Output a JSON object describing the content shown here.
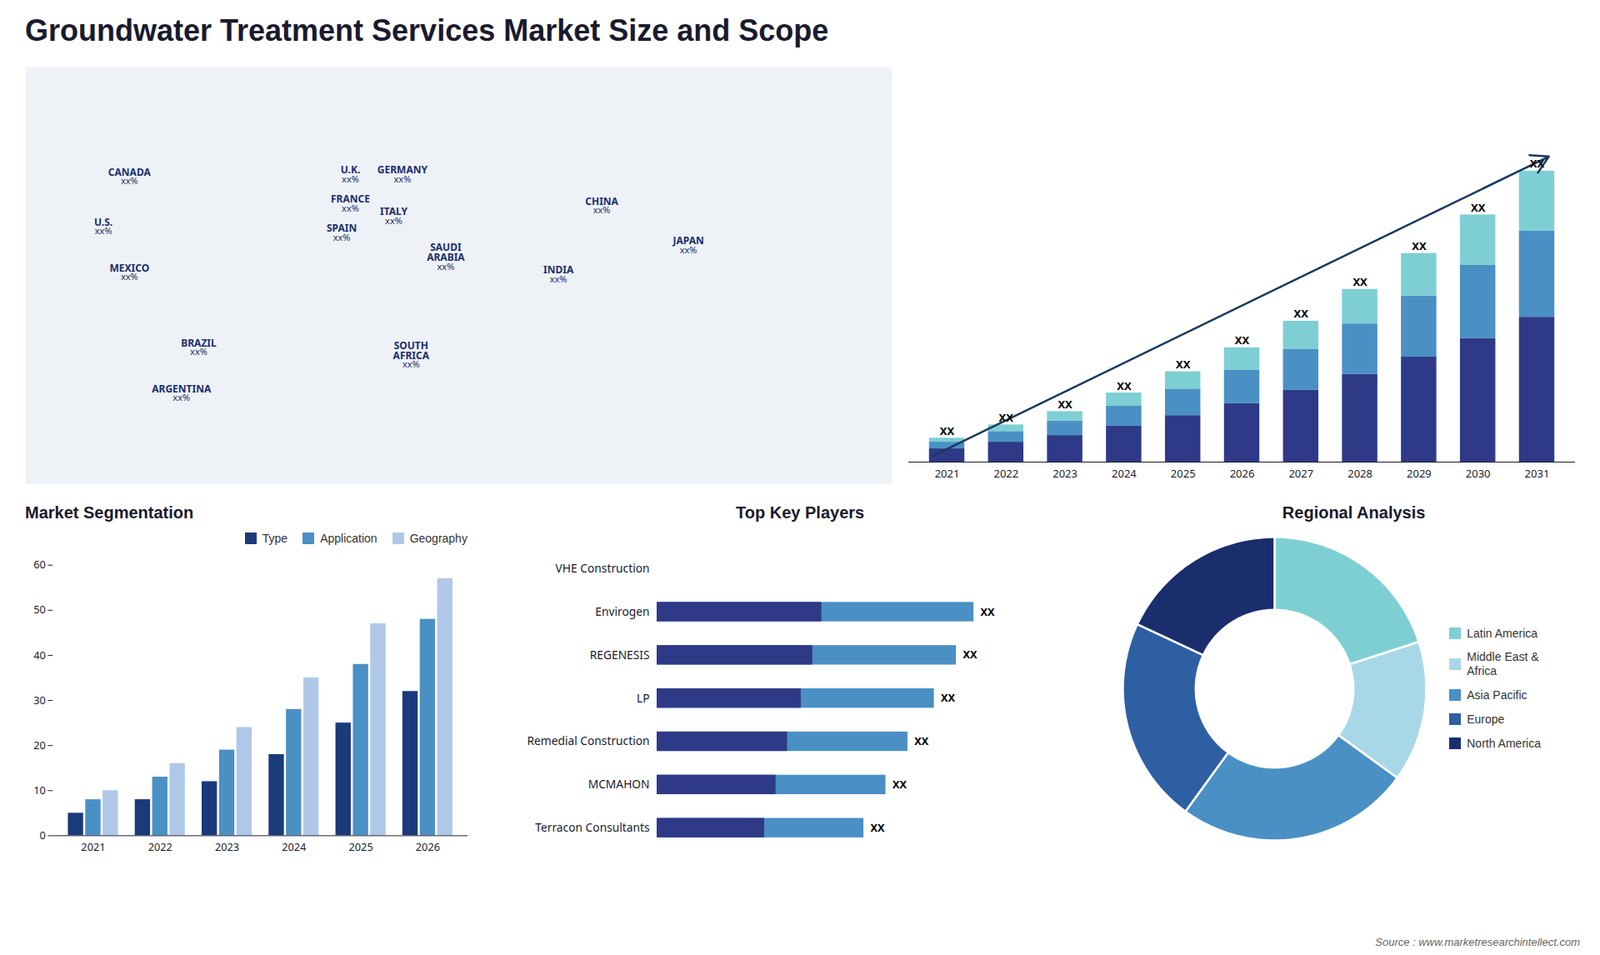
{
  "title": "Groundwater Treatment Services Market Size and Scope",
  "source": "Source : www.marketresearchintellect.com",
  "chart_data": [
    {
      "type": "map",
      "labels": [
        "CANADA",
        "U.S.",
        "MEXICO",
        "BRAZIL",
        "ARGENTINA",
        "U.K.",
        "FRANCE",
        "SPAIN",
        "GERMANY",
        "ITALY",
        "SAUDI\nARABIA",
        "SOUTH\nAFRICA",
        "CHINA",
        "JAPAN",
        "INDIA"
      ],
      "value_labels": [
        "xx%",
        "xx%",
        "xx%",
        "xx%",
        "xx%",
        "xx%",
        "xx%",
        "xx%",
        "xx%",
        "xx%",
        "xx%",
        "xx%",
        "xx%",
        "xx%",
        "xx%"
      ],
      "x": [
        0.12,
        0.09,
        0.12,
        0.2,
        0.18,
        0.375,
        0.375,
        0.365,
        0.435,
        0.425,
        0.485,
        0.445,
        0.665,
        0.765,
        0.615
      ],
      "y": [
        0.74,
        0.62,
        0.51,
        0.33,
        0.22,
        0.745,
        0.675,
        0.605,
        0.745,
        0.645,
        0.535,
        0.3,
        0.67,
        0.575,
        0.505
      ],
      "xlim": [
        0,
        1
      ],
      "ylim": [
        0,
        1
      ],
      "tick_labels": false,
      "color": "#1a2e6e"
    },
    {
      "type": "bar",
      "stacked": true,
      "categories": [
        "2021",
        "2022",
        "2023",
        "2024",
        "2025",
        "2026",
        "2027",
        "2028",
        "2029",
        "2030",
        "2031"
      ],
      "series": [
        {
          "color": "#2e3a87",
          "values": [
            1,
            1.5,
            2,
            2.7,
            3.5,
            4.4,
            5.4,
            6.6,
            7.9,
            9.3,
            10.9
          ]
        },
        {
          "color": "#4a90c4",
          "values": [
            0.5,
            0.8,
            1.1,
            1.5,
            2.0,
            2.5,
            3.1,
            3.8,
            4.6,
            5.5,
            6.5
          ]
        },
        {
          "color": "#7ecfd4",
          "values": [
            0.3,
            0.5,
            0.7,
            1.0,
            1.3,
            1.7,
            2.1,
            2.6,
            3.2,
            3.8,
            4.5
          ]
        }
      ],
      "labels": [
        "XX",
        "XX",
        "XX",
        "XX",
        "XX",
        "XX",
        "XX",
        "XX",
        "XX",
        "XX",
        "XX"
      ],
      "annotations": [
        {
          "type": "arrow",
          "color": "#1a3a5c"
        }
      ],
      "ylim": [
        0,
        28.47
      ],
      "tick_labels": "x"
    },
    {
      "type": "bar",
      "title": "Market Segmentation",
      "categories": [
        "2021",
        "2022",
        "2023",
        "2024",
        "2025",
        "2026"
      ],
      "series": [
        {
          "name": "Type",
          "color": "#1a3a7c",
          "values": [
            5,
            8,
            12,
            18,
            25,
            32
          ]
        },
        {
          "name": "Application",
          "color": "#4a90c4",
          "values": [
            8,
            13,
            19,
            28,
            38,
            48
          ]
        },
        {
          "name": "Geography",
          "color": "#b0c8e8",
          "values": [
            10,
            16,
            24,
            35,
            47,
            57
          ]
        }
      ],
      "ylim": [
        0,
        60
      ],
      "yticks": [
        0,
        10,
        20,
        30,
        40,
        50,
        60
      ],
      "legend": "top"
    },
    {
      "type": "bar",
      "orientation": "horizontal",
      "title": "Top Key Players",
      "categories": [
        "VHE Construction",
        "Envirogen",
        "REGENESIS",
        "LP",
        "Remedial Construction",
        "MCMAHON",
        "Terracon Consultants"
      ],
      "series": [
        {
          "color": "#4a90c4",
          "values": [
            0,
            72,
            68,
            63,
            57,
            52,
            47
          ],
          "value_labels": [
            null,
            "XX",
            "XX",
            "XX",
            "XX",
            "XX",
            "XX"
          ]
        },
        {
          "color": "#2e3a87",
          "values": [
            0,
            37.44,
            35.36,
            32.76,
            29.64,
            27.04,
            24.44
          ]
        }
      ],
      "xlim": [
        0,
        95
      ],
      "tick_labels": "y"
    },
    {
      "type": "donut",
      "title": "Regional Analysis",
      "categories": [
        "Latin America",
        "Middle East &\nAfrica",
        "Asia Pacific",
        "Europe",
        "North America"
      ],
      "values": [
        20,
        15,
        25,
        22,
        18
      ],
      "colors": [
        "#7ecfd4",
        "#a8d8e8",
        "#4a90c4",
        "#2e5fa3",
        "#1a2e6e"
      ],
      "legend": "right"
    }
  ]
}
